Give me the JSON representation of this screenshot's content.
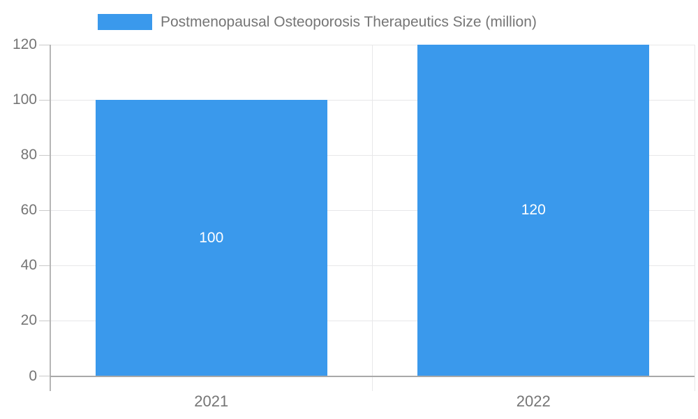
{
  "legend": {
    "label": "Postmenopausal Osteoporosis Therapeutics Size (million)"
  },
  "chart_data": {
    "type": "bar",
    "title": "",
    "categories": [
      "2021",
      "2022"
    ],
    "series": [
      {
        "name": "Postmenopausal Osteoporosis Therapeutics Size (million)",
        "values": [
          100,
          120
        ]
      }
    ],
    "data_labels": [
      100,
      120
    ],
    "xlabel": "",
    "ylabel": "",
    "ylim": [
      0,
      120
    ],
    "yticks": [
      0,
      20,
      40,
      60,
      80,
      100,
      120
    ],
    "grid": true,
    "legend_position": "top"
  },
  "colors": {
    "bar": "#3a99ec",
    "text": "#757575",
    "bar_label": "#ffffff",
    "grid_line": "#e7e7e9",
    "tick_line": "#c9c9c9",
    "y_axis_line": "#b5b5b5",
    "x_axis_line": "#a8a8a8",
    "background": "#ffffff"
  }
}
